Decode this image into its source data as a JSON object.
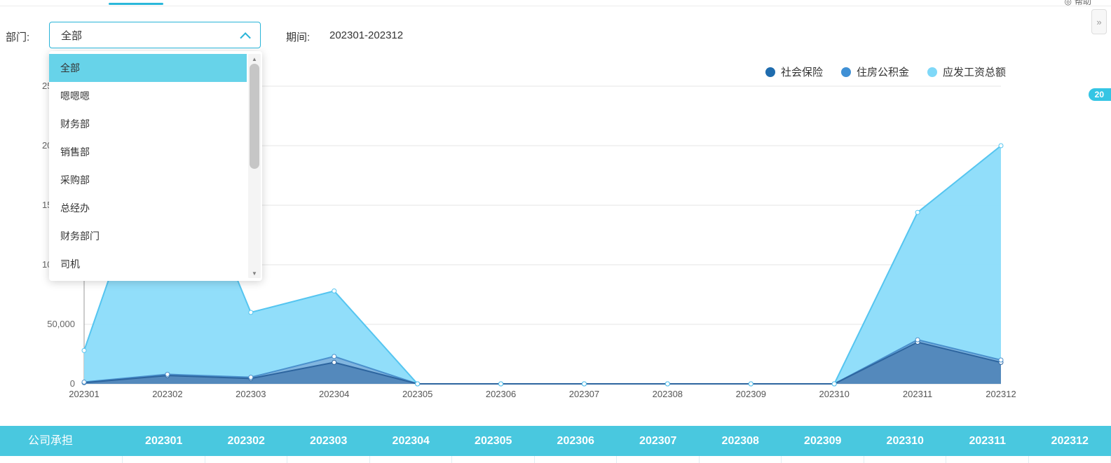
{
  "topbar": {
    "help_icon": "◎",
    "help_label": "帮助",
    "collapse_icon": "»"
  },
  "filters": {
    "department_label": "部门:",
    "department_value": "全部",
    "period_label": "期间:",
    "period_value": "202301-202312"
  },
  "dropdown": {
    "selected": "全部",
    "options": [
      "全部",
      "嗯嗯嗯",
      "财务部",
      "销售部",
      "采购部",
      "总经办",
      "财务部门",
      "司机"
    ]
  },
  "side_badge": "20",
  "chart_data": {
    "type": "area",
    "categories": [
      "202301",
      "202302",
      "202303",
      "202304",
      "202305",
      "202306",
      "202307",
      "202308",
      "202309",
      "202310",
      "202311",
      "202312"
    ],
    "series": [
      {
        "name": "社会保险",
        "dot": "#1f6cae",
        "line": "#2d659f",
        "fill": "#4f84b8",
        "opacity": 0.9,
        "values": [
          1000,
          7000,
          4500,
          18000,
          0,
          0,
          0,
          0,
          0,
          0,
          35000,
          18000
        ]
      },
      {
        "name": "住房公积金",
        "dot": "#3f90d5",
        "line": "#4a90cc",
        "fill": "#7fb0dc",
        "opacity": 0.9,
        "values": [
          1500,
          8000,
          5500,
          23000,
          0,
          0,
          0,
          0,
          0,
          0,
          37000,
          20000
        ]
      },
      {
        "name": "应发工资总额",
        "dot": "#7fd8f8",
        "line": "#55c5f0",
        "fill": "#8bdcfa",
        "opacity": 0.95,
        "values": [
          28000,
          230000,
          60000,
          78000,
          0,
          0,
          0,
          0,
          0,
          0,
          144000,
          200000
        ]
      }
    ],
    "ylim": [
      0,
      250000
    ],
    "yticks": [
      0,
      50000,
      100000,
      150000,
      200000,
      250000
    ],
    "grid": true,
    "legend_position": "top-right"
  },
  "table": {
    "header": [
      "公司承担",
      "202301",
      "202302",
      "202303",
      "202304",
      "202305",
      "202306",
      "202307",
      "202308",
      "202309",
      "202310",
      "202311",
      "202312"
    ]
  }
}
